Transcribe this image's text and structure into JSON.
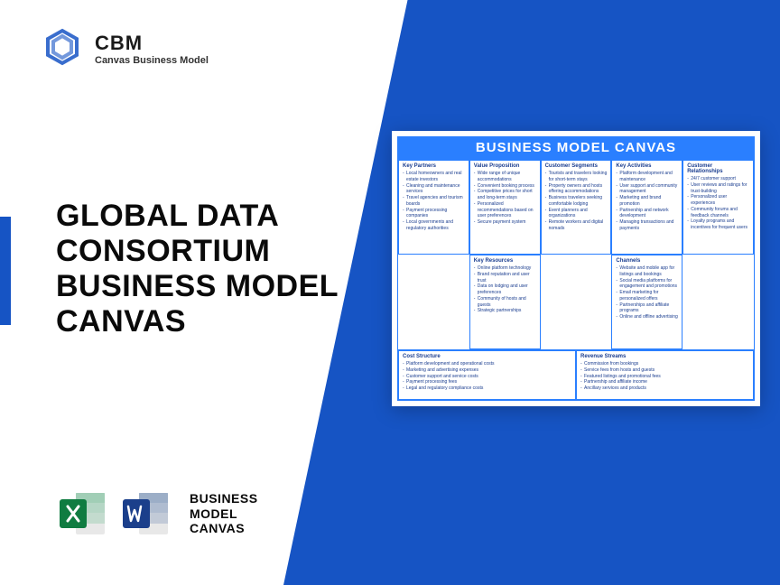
{
  "logo": {
    "brand": "CBM",
    "sub": "Canvas Business Model"
  },
  "title": "GLOBAL DATA\nCONSORTIUM\nBUSINESS MODEL\nCANVAS",
  "bottom_label": "BUSINESS\nMODEL\nCANVAS",
  "canvas": {
    "header": "BUSINESS MODEL CANVAS",
    "cells": {
      "kp": {
        "h": "Key Partners",
        "items": [
          "Local homeowners and real estate investors",
          "Cleaning and maintenance services",
          "Travel agencies and tourism boards",
          "Payment processing companies",
          "Local governments and regulatory authorities"
        ]
      },
      "ka": {
        "h": "Key Activities",
        "items": [
          "Platform development and maintenance",
          "User support and community management",
          "Marketing and brand promotion",
          "Partnership and network development",
          "Managing transactions and payments"
        ]
      },
      "vp": {
        "h": "Value Proposition",
        "items": [
          "Wide range of unique accommodations",
          "Convenient booking process",
          "Competitive prices for short and long-term stays",
          "Personalized recommendations based on user preferences",
          "Secure payment system"
        ]
      },
      "cr": {
        "h": "Customer Relationships",
        "items": [
          "24/7 customer support",
          "User reviews and ratings for trust-building",
          "Personalized user experiences",
          "Community forums and feedback channels",
          "Loyalty programs and incentives for frequent users"
        ]
      },
      "cs": {
        "h": "Customer Segments",
        "items": [
          "Tourists and travelers looking for short-term stays",
          "Property owners and hosts offering accommodations",
          "Business travelers seeking comfortable lodging",
          "Event planners and organizations",
          "Remote workers and digital nomads"
        ]
      },
      "kr": {
        "h": "Key Resources",
        "items": [
          "Online platform technology",
          "Brand reputation and user trust",
          "Data on lodging and user preferences",
          "Community of hosts and guests",
          "Strategic partnerships"
        ]
      },
      "ch": {
        "h": "Channels",
        "items": [
          "Website and mobile app for listings and bookings",
          "Social media platforms for engagement and promotions",
          "Email marketing for personalized offers",
          "Partnerships and affiliate programs",
          "Online and offline advertising"
        ]
      },
      "cost": {
        "h": "Cost Structure",
        "items": [
          "Platform development and operational costs",
          "Marketing and advertising expenses",
          "Customer support and service costs",
          "Payment processing fees",
          "Legal and regulatory compliance costs"
        ]
      },
      "rev": {
        "h": "Revenue Streams",
        "items": [
          "Commission from bookings",
          "Service fees from hosts and guests",
          "Featured listings and promotional fees",
          "Partnership and affiliate income",
          "Ancillary services and products"
        ]
      }
    }
  },
  "colors": {
    "primary": "#1654c4",
    "accent": "#2a7fff",
    "excel": "#1d9f5a",
    "word": "#2b5797"
  }
}
